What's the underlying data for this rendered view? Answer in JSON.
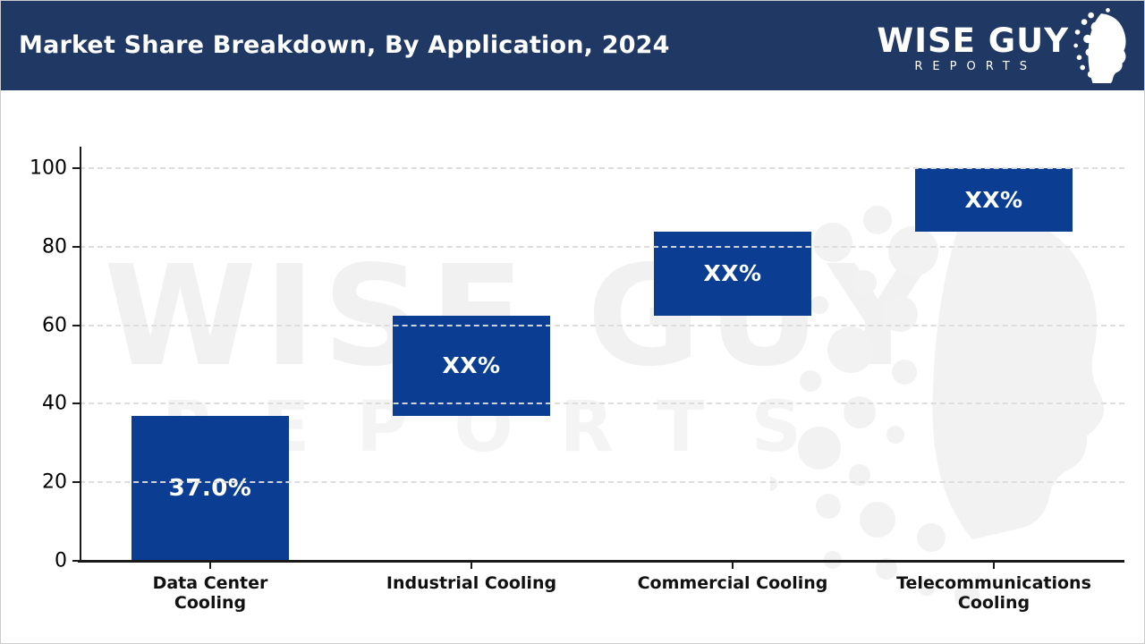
{
  "header": {
    "title": "Market Share Breakdown, By Application, 2024",
    "logo": {
      "line1": "WISE GUY",
      "line2": "REPORTS"
    }
  },
  "watermark": {
    "line1": "WISE GUY",
    "line2": "REPORTS"
  },
  "colors": {
    "header_bg": "#1f3864",
    "bar_fill": "#0b3e92",
    "grid_line": "#dbdbdb",
    "axis": "#1a1a1a",
    "bar_label_text": "#ffffff",
    "watermark": "#f1f1f1"
  },
  "chart_data": {
    "type": "bar",
    "subtype": "floating-waterfall",
    "title": "Market Share Breakdown, By Application, 2024",
    "categories": [
      "Data Center\nCooling",
      "Industrial Cooling",
      "Commercial Cooling",
      "Telecommunications\nCooling"
    ],
    "segments": [
      {
        "category": "Data Center Cooling",
        "start": 0,
        "end": 37.0,
        "label": "37.0%"
      },
      {
        "category": "Industrial Cooling",
        "start": 37.0,
        "end": 62.5,
        "label": "XX%"
      },
      {
        "category": "Commercial Cooling",
        "start": 62.5,
        "end": 83.8,
        "label": "XX%"
      },
      {
        "category": "Telecommunications Cooling",
        "start": 83.8,
        "end": 100.0,
        "label": "XX%"
      }
    ],
    "yticks": [
      0,
      20,
      40,
      60,
      80,
      100
    ],
    "ylim": [
      0,
      100
    ],
    "xlabel": "",
    "ylabel": "",
    "grid": "horizontal-dashed",
    "legend": "none"
  }
}
